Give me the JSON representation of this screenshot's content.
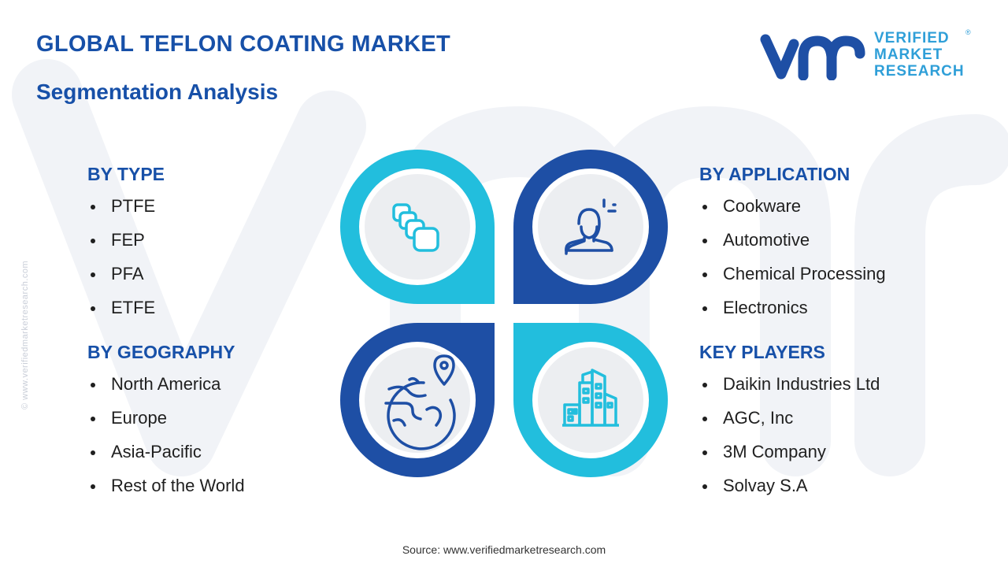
{
  "header": {
    "title": "GLOBAL TEFLON COATING MARKET",
    "subtitle": "Segmentation Analysis"
  },
  "logo": {
    "line1": "VERIFIED",
    "line2": "MARKET",
    "line3": "RESEARCH",
    "registered": "®"
  },
  "side_watermark": "© www.verifiedmarketresearch.com",
  "segments": {
    "type": {
      "heading": "BY TYPE",
      "items": [
        "PTFE",
        "FEP",
        "PFA",
        "ETFE"
      ]
    },
    "geography": {
      "heading": "BY GEOGRAPHY",
      "items": [
        "North America",
        "Europe",
        "Asia-Pacific",
        "Rest of the World"
      ]
    },
    "application": {
      "heading": "BY APPLICATION",
      "items": [
        "Cookware",
        "Automotive",
        "Chemical Processing",
        "Electronics"
      ]
    },
    "key_players": {
      "heading": "KEY PLAYERS",
      "items": [
        "Daikin Industries Ltd",
        "AGC, Inc",
        "3M Company",
        "Solvay S.A"
      ]
    }
  },
  "diagram_icons": {
    "top_left": "stacked-blocks-icon",
    "top_right": "user-profile-icon",
    "bottom_left": "globe-location-icon",
    "bottom_right": "buildings-icon"
  },
  "colors": {
    "heading_blue": "#1750a8",
    "dark_blue": "#1e4fa5",
    "cyan": "#22bedd",
    "logo_blue": "#1e4fa5",
    "logo_text": "#2f9fd8",
    "circle_fill": "#eceef1"
  },
  "source": "Source: www.verifiedmarketresearch.com"
}
